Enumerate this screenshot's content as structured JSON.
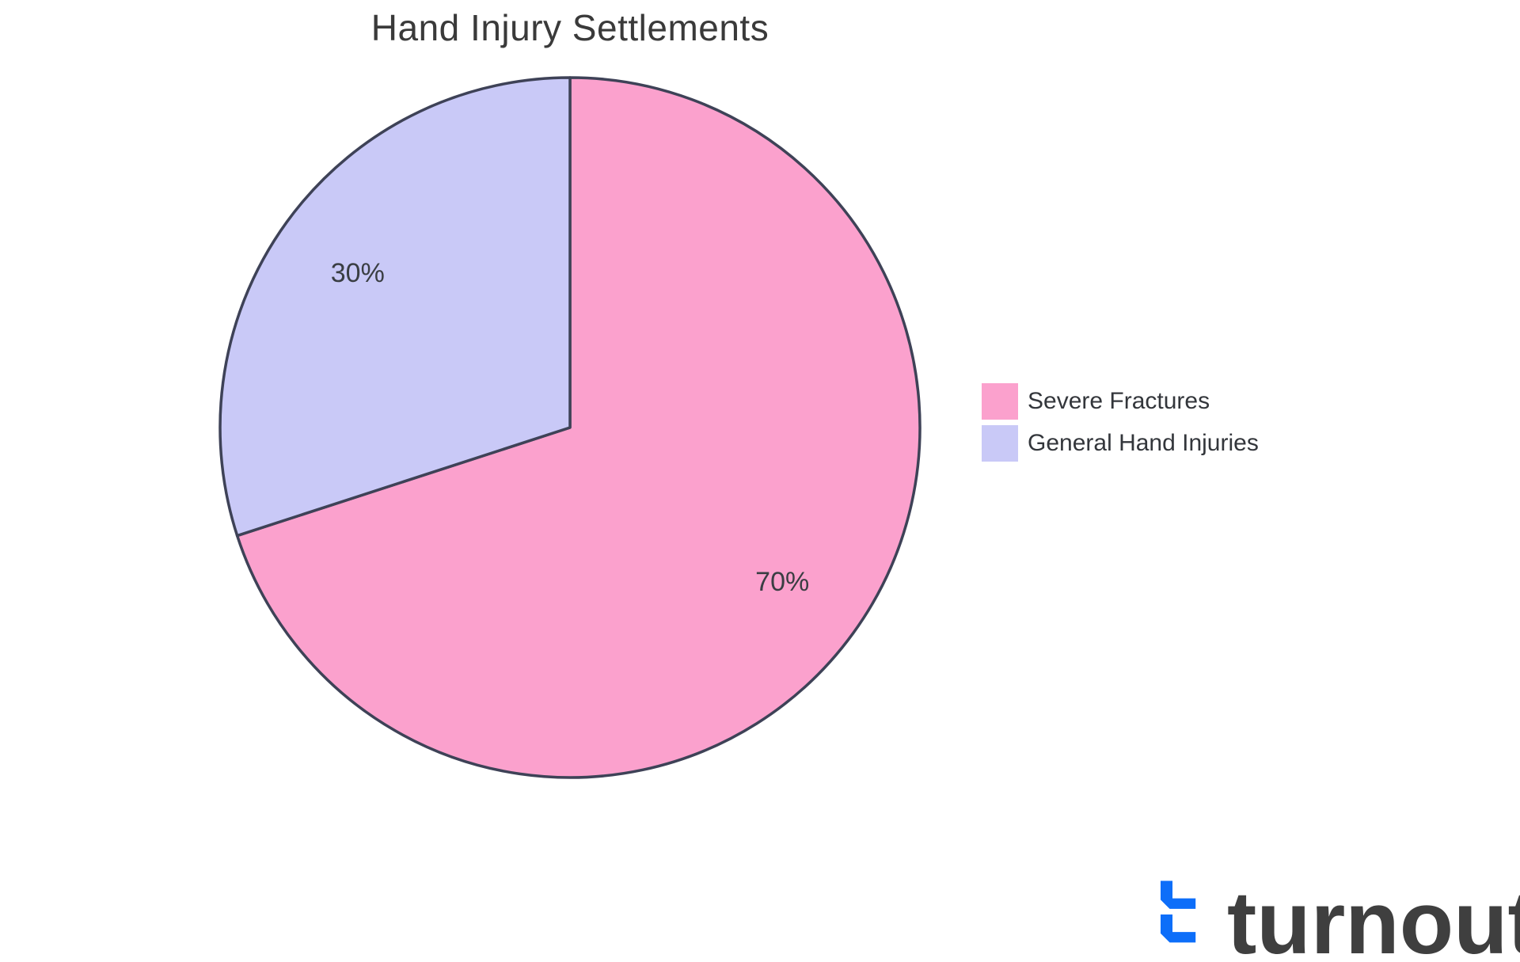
{
  "chart_data": {
    "type": "pie",
    "title": "Hand Injury Settlements",
    "labels": [
      "Severe Fractures",
      "General Hand Injuries"
    ],
    "values": [
      70,
      30
    ],
    "value_labels": [
      "70%",
      "30%"
    ],
    "colors": [
      "#FBA1CD",
      "#C9C9F7"
    ],
    "border_color": "#3E4257",
    "border_width": 3.5,
    "label_color": "#3A3E43",
    "label_radius_fraction": 0.75,
    "start_angle": "top",
    "direction": "clockwise",
    "legend_position": "right"
  },
  "brand": {
    "wordmark": "turnout",
    "icon_color": "#0D6EF9",
    "text_color": "#3F3F3F"
  }
}
